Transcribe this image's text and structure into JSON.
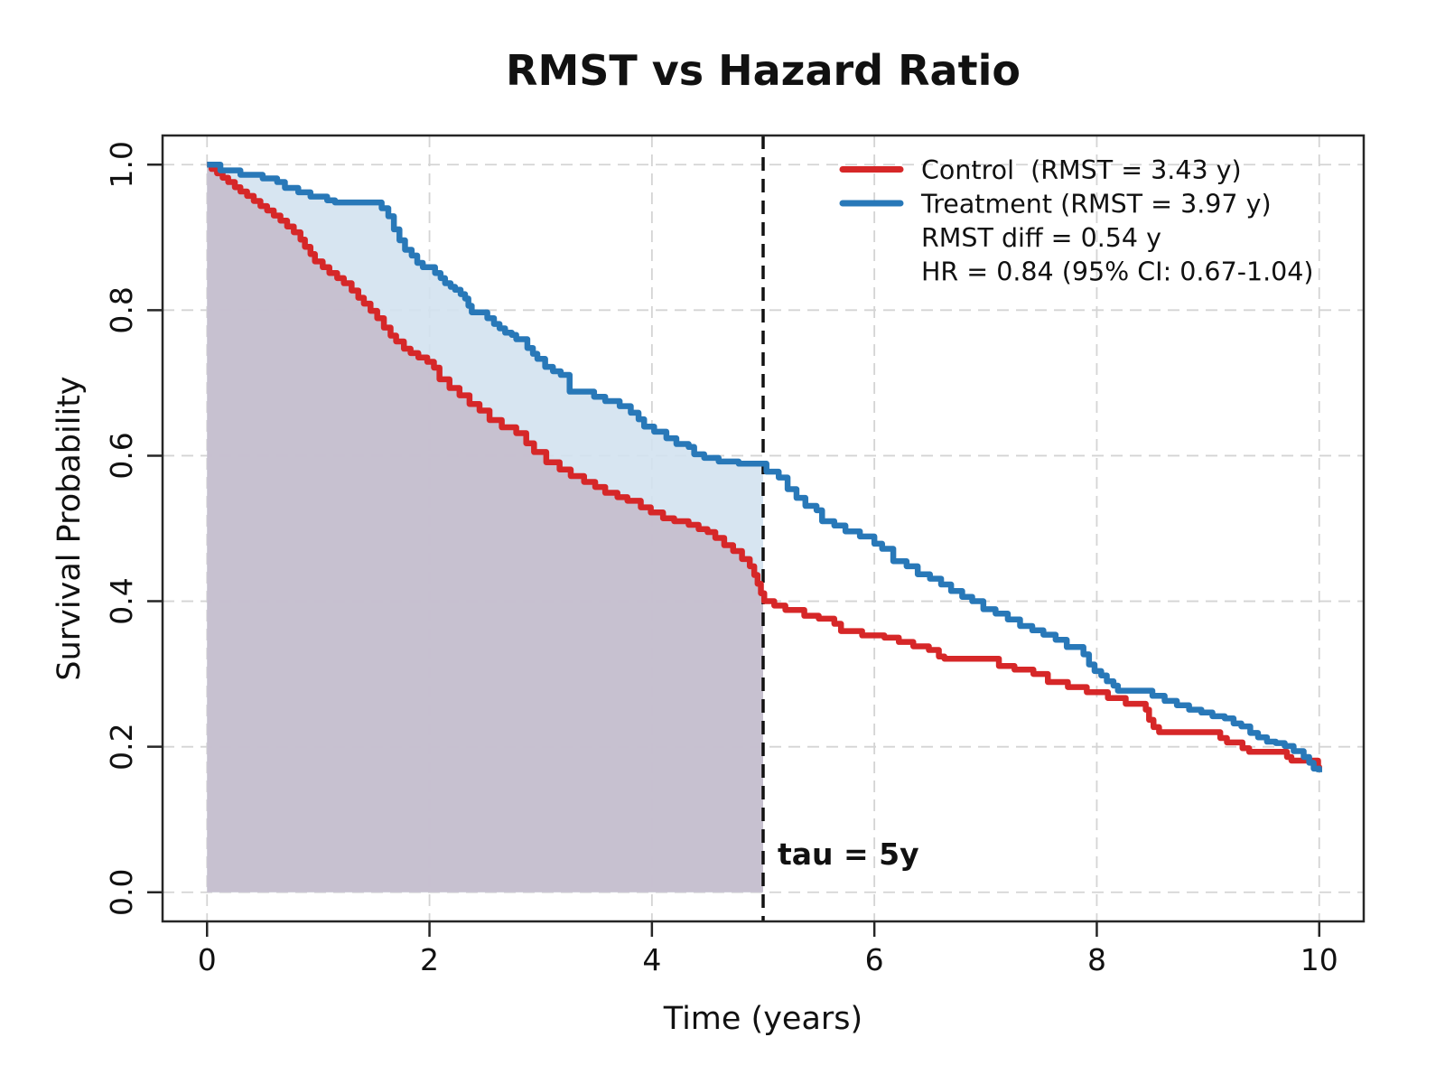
{
  "title": "RMST vs Hazard Ratio",
  "chart_data": {
    "type": "line",
    "subtype": "kaplan-meier-step-curves",
    "title": "RMST vs Hazard Ratio",
    "xlabel": "Time (years)",
    "ylabel": "Survival Probability",
    "xlim": [
      -0.4,
      10.4
    ],
    "ylim": [
      -0.04,
      1.04
    ],
    "xticks": [
      0,
      2,
      4,
      6,
      8,
      10
    ],
    "xtick_labels": [
      "0",
      "2",
      "4",
      "6",
      "8",
      "10"
    ],
    "yticks": [
      0.0,
      0.2,
      0.4,
      0.6,
      0.8,
      1.0
    ],
    "ytick_labels": [
      "0.0",
      "0.2",
      "0.4",
      "0.6",
      "0.8",
      "1.0"
    ],
    "grid": "dashed-on-both-axes",
    "grid_color": "#d4d4d4",
    "border_color": "#262626",
    "tau": {
      "x": 5,
      "label": "tau = 5y",
      "line_color": "#111111",
      "line_style": "dashed"
    },
    "shade_to": 5,
    "legend": {
      "position": "upper right",
      "control": "Control  (RMST = 3.43 y)",
      "treatment": "Treatment (RMST = 3.97 y)",
      "rmst_diff": "RMST diff = 0.54 y",
      "hr": "HR = 0.84 (95% CI: 0.67-1.04)"
    },
    "series": [
      {
        "name": "Control",
        "rmst_years": 3.43,
        "color": "#d62728",
        "fill": "#c5bdcc",
        "points": [
          [
            0,
            1.0
          ],
          [
            0.04,
            0.994
          ],
          [
            0.09,
            0.988
          ],
          [
            0.14,
            0.982
          ],
          [
            0.19,
            0.976
          ],
          [
            0.25,
            0.969
          ],
          [
            0.3,
            0.963
          ],
          [
            0.36,
            0.957
          ],
          [
            0.42,
            0.95
          ],
          [
            0.48,
            0.943
          ],
          [
            0.54,
            0.937
          ],
          [
            0.6,
            0.93
          ],
          [
            0.66,
            0.923
          ],
          [
            0.72,
            0.915
          ],
          [
            0.78,
            0.907
          ],
          [
            0.84,
            0.897
          ],
          [
            0.88,
            0.887
          ],
          [
            0.93,
            0.877
          ],
          [
            0.97,
            0.867
          ],
          [
            1.04,
            0.859
          ],
          [
            1.1,
            0.851
          ],
          [
            1.17,
            0.844
          ],
          [
            1.23,
            0.837
          ],
          [
            1.3,
            0.827
          ],
          [
            1.36,
            0.817
          ],
          [
            1.41,
            0.809
          ],
          [
            1.47,
            0.799
          ],
          [
            1.53,
            0.789
          ],
          [
            1.59,
            0.776
          ],
          [
            1.65,
            0.765
          ],
          [
            1.7,
            0.757
          ],
          [
            1.77,
            0.747
          ],
          [
            1.83,
            0.741
          ],
          [
            1.9,
            0.735
          ],
          [
            1.98,
            0.729
          ],
          [
            2.04,
            0.721
          ],
          [
            2.09,
            0.705
          ],
          [
            2.18,
            0.693
          ],
          [
            2.27,
            0.683
          ],
          [
            2.36,
            0.671
          ],
          [
            2.45,
            0.662
          ],
          [
            2.54,
            0.649
          ],
          [
            2.65,
            0.639
          ],
          [
            2.78,
            0.631
          ],
          [
            2.87,
            0.617
          ],
          [
            2.94,
            0.605
          ],
          [
            3.05,
            0.591
          ],
          [
            3.17,
            0.581
          ],
          [
            3.27,
            0.572
          ],
          [
            3.39,
            0.564
          ],
          [
            3.49,
            0.557
          ],
          [
            3.58,
            0.549
          ],
          [
            3.69,
            0.543
          ],
          [
            3.78,
            0.538
          ],
          [
            3.9,
            0.529
          ],
          [
            3.99,
            0.522
          ],
          [
            4.1,
            0.514
          ],
          [
            4.2,
            0.51
          ],
          [
            4.33,
            0.505
          ],
          [
            4.42,
            0.499
          ],
          [
            4.5,
            0.495
          ],
          [
            4.57,
            0.487
          ],
          [
            4.65,
            0.477
          ],
          [
            4.73,
            0.469
          ],
          [
            4.81,
            0.458
          ],
          [
            4.88,
            0.448
          ],
          [
            4.92,
            0.436
          ],
          [
            4.95,
            0.424
          ],
          [
            4.98,
            0.411
          ],
          [
            5.01,
            0.4
          ],
          [
            5.1,
            0.394
          ],
          [
            5.2,
            0.388
          ],
          [
            5.37,
            0.38
          ],
          [
            5.5,
            0.376
          ],
          [
            5.64,
            0.369
          ],
          [
            5.7,
            0.359
          ],
          [
            5.89,
            0.353
          ],
          [
            6.09,
            0.35
          ],
          [
            6.22,
            0.344
          ],
          [
            6.35,
            0.338
          ],
          [
            6.49,
            0.333
          ],
          [
            6.58,
            0.324
          ],
          [
            6.63,
            0.321
          ],
          [
            7.12,
            0.311
          ],
          [
            7.26,
            0.306
          ],
          [
            7.43,
            0.3
          ],
          [
            7.56,
            0.289
          ],
          [
            7.74,
            0.282
          ],
          [
            7.91,
            0.275
          ],
          [
            8.1,
            0.267
          ],
          [
            8.26,
            0.259
          ],
          [
            8.44,
            0.251
          ],
          [
            8.47,
            0.237
          ],
          [
            8.51,
            0.227
          ],
          [
            8.56,
            0.22
          ],
          [
            9.11,
            0.212
          ],
          [
            9.17,
            0.206
          ],
          [
            9.31,
            0.198
          ],
          [
            9.37,
            0.193
          ],
          [
            9.71,
            0.186
          ],
          [
            9.75,
            0.181
          ],
          [
            9.99,
            0.172
          ],
          [
            10,
            0.17
          ]
        ]
      },
      {
        "name": "Treatment",
        "rmst_years": 3.97,
        "color": "#2878b8",
        "fill": "#d3e2ef",
        "points": [
          [
            0,
            1.0
          ],
          [
            0.12,
            0.992
          ],
          [
            0.3,
            0.986
          ],
          [
            0.5,
            0.981
          ],
          [
            0.63,
            0.976
          ],
          [
            0.7,
            0.968
          ],
          [
            0.82,
            0.962
          ],
          [
            0.93,
            0.956
          ],
          [
            1.08,
            0.951
          ],
          [
            1.15,
            0.948
          ],
          [
            1.57,
            0.94
          ],
          [
            1.63,
            0.929
          ],
          [
            1.68,
            0.911
          ],
          [
            1.73,
            0.896
          ],
          [
            1.78,
            0.883
          ],
          [
            1.84,
            0.875
          ],
          [
            1.89,
            0.865
          ],
          [
            1.94,
            0.859
          ],
          [
            2.05,
            0.851
          ],
          [
            2.1,
            0.844
          ],
          [
            2.14,
            0.837
          ],
          [
            2.19,
            0.832
          ],
          [
            2.23,
            0.828
          ],
          [
            2.28,
            0.822
          ],
          [
            2.32,
            0.816
          ],
          [
            2.35,
            0.806
          ],
          [
            2.38,
            0.797
          ],
          [
            2.52,
            0.789
          ],
          [
            2.58,
            0.781
          ],
          [
            2.63,
            0.775
          ],
          [
            2.68,
            0.769
          ],
          [
            2.74,
            0.766
          ],
          [
            2.78,
            0.76
          ],
          [
            2.88,
            0.748
          ],
          [
            2.93,
            0.74
          ],
          [
            2.97,
            0.733
          ],
          [
            3.04,
            0.722
          ],
          [
            3.11,
            0.716
          ],
          [
            3.18,
            0.711
          ],
          [
            3.26,
            0.688
          ],
          [
            3.48,
            0.681
          ],
          [
            3.58,
            0.675
          ],
          [
            3.71,
            0.668
          ],
          [
            3.81,
            0.659
          ],
          [
            3.88,
            0.65
          ],
          [
            3.93,
            0.64
          ],
          [
            4.02,
            0.633
          ],
          [
            4.13,
            0.624
          ],
          [
            4.22,
            0.616
          ],
          [
            4.33,
            0.612
          ],
          [
            4.38,
            0.602
          ],
          [
            4.47,
            0.597
          ],
          [
            4.6,
            0.592
          ],
          [
            4.78,
            0.589
          ],
          [
            5.03,
            0.578
          ],
          [
            5.14,
            0.57
          ],
          [
            5.22,
            0.554
          ],
          [
            5.3,
            0.542
          ],
          [
            5.38,
            0.531
          ],
          [
            5.48,
            0.525
          ],
          [
            5.53,
            0.51
          ],
          [
            5.64,
            0.504
          ],
          [
            5.74,
            0.496
          ],
          [
            5.87,
            0.489
          ],
          [
            6.0,
            0.479
          ],
          [
            6.07,
            0.472
          ],
          [
            6.17,
            0.455
          ],
          [
            6.29,
            0.448
          ],
          [
            6.39,
            0.437
          ],
          [
            6.5,
            0.431
          ],
          [
            6.6,
            0.423
          ],
          [
            6.69,
            0.414
          ],
          [
            6.79,
            0.406
          ],
          [
            6.88,
            0.4
          ],
          [
            6.98,
            0.389
          ],
          [
            7.09,
            0.383
          ],
          [
            7.2,
            0.375
          ],
          [
            7.31,
            0.366
          ],
          [
            7.42,
            0.36
          ],
          [
            7.52,
            0.354
          ],
          [
            7.63,
            0.347
          ],
          [
            7.73,
            0.337
          ],
          [
            7.88,
            0.327
          ],
          [
            7.93,
            0.313
          ],
          [
            7.98,
            0.304
          ],
          [
            8.04,
            0.298
          ],
          [
            8.09,
            0.29
          ],
          [
            8.15,
            0.284
          ],
          [
            8.19,
            0.277
          ],
          [
            8.5,
            0.27
          ],
          [
            8.61,
            0.263
          ],
          [
            8.72,
            0.257
          ],
          [
            8.83,
            0.251
          ],
          [
            8.94,
            0.247
          ],
          [
            9.04,
            0.242
          ],
          [
            9.15,
            0.239
          ],
          [
            9.23,
            0.232
          ],
          [
            9.3,
            0.228
          ],
          [
            9.38,
            0.219
          ],
          [
            9.45,
            0.213
          ],
          [
            9.53,
            0.207
          ],
          [
            9.61,
            0.205
          ],
          [
            9.69,
            0.201
          ],
          [
            9.77,
            0.194
          ],
          [
            9.86,
            0.186
          ],
          [
            9.91,
            0.178
          ],
          [
            9.95,
            0.17
          ],
          [
            10,
            0.165
          ]
        ]
      }
    ]
  }
}
